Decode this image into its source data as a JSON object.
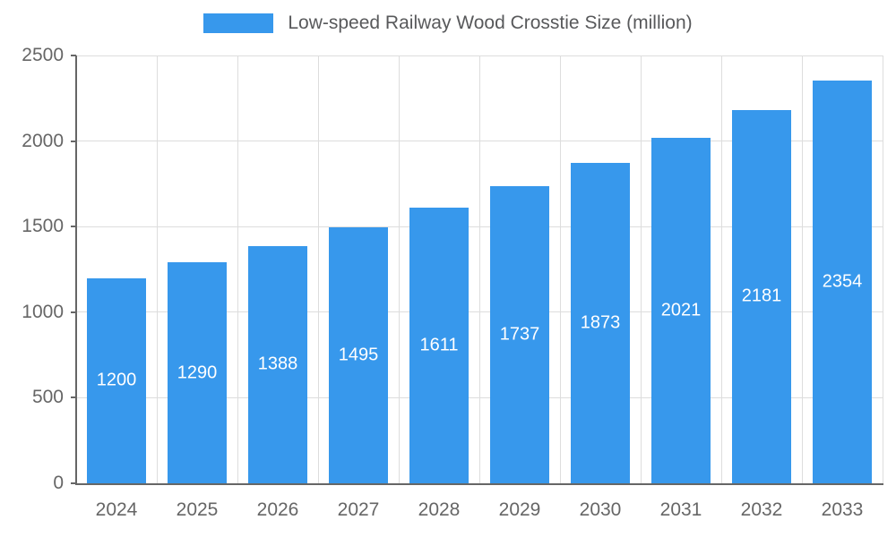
{
  "legend": {
    "label": "Low-speed Railway Wood Crosstie Size (million)",
    "swatch_color": "#3798EC"
  },
  "chart_data": {
    "type": "bar",
    "title": "Low-speed Railway Wood Crosstie Size (million)",
    "categories": [
      "2024",
      "2025",
      "2026",
      "2027",
      "2028",
      "2029",
      "2030",
      "2031",
      "2032",
      "2033"
    ],
    "values": [
      1200,
      1290,
      1388,
      1495,
      1611,
      1737,
      1873,
      2021,
      2181,
      2354
    ],
    "xlabel": "",
    "ylabel": "",
    "ylim": [
      0,
      2500
    ],
    "yticks": [
      0,
      500,
      1000,
      1500,
      2000,
      2500
    ],
    "grid": true,
    "legend_position": "top",
    "bar_color": "#3798EC",
    "bar_label_color": "#ffffff",
    "axis_color": "#666666",
    "grid_color": "#dddddd"
  }
}
